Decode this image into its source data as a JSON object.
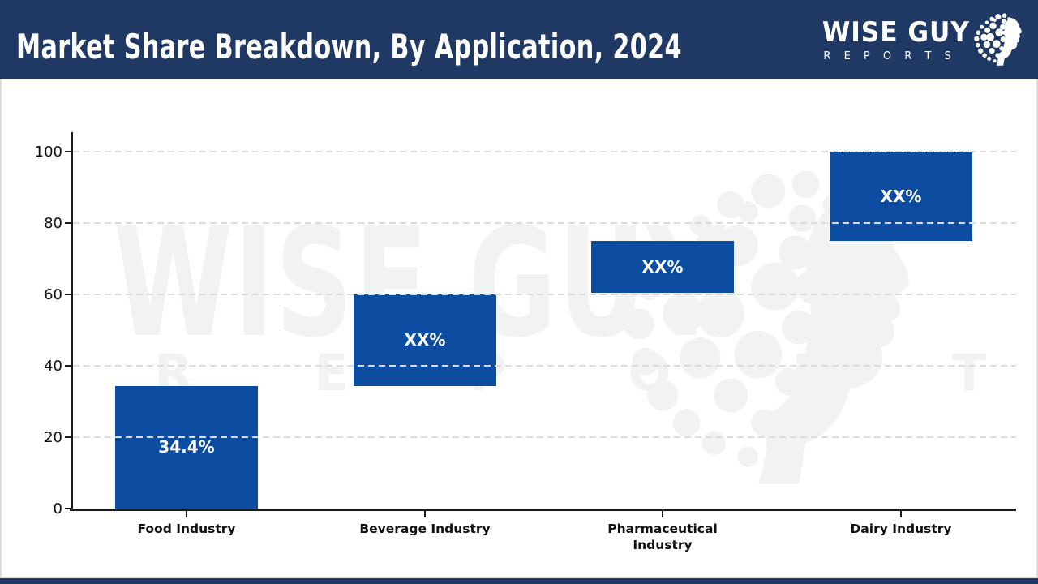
{
  "header": {
    "title": "Market Share Breakdown, By Application, 2024",
    "logo_line1": "WISE GUY",
    "logo_line2": "R E P O R T S",
    "bg_color": "#1F3864"
  },
  "watermark": {
    "line1": "WISE GUY",
    "line2": "R E P O R T S"
  },
  "chart_data": {
    "type": "bar",
    "subtype": "floating-waterfall",
    "title": "Market Share Breakdown, By Application, 2024",
    "categories": [
      "Food Industry",
      "Beverage Industry",
      "Pharmaceutical Industry",
      "Dairy Industry"
    ],
    "bars": [
      {
        "category": "Food Industry",
        "base": 0,
        "top": 34.4,
        "label": "34.4%"
      },
      {
        "category": "Beverage Industry",
        "base": 34.4,
        "top": 60,
        "label": "XX%"
      },
      {
        "category": "Pharmaceutical Industry",
        "base": 60.5,
        "top": 75,
        "label": "XX%"
      },
      {
        "category": "Dairy Industry",
        "base": 75,
        "top": 100,
        "label": "XX%"
      }
    ],
    "unit": "%",
    "yticks": [
      0,
      20,
      40,
      60,
      80,
      100
    ],
    "ylim": [
      0,
      100
    ],
    "xlabel": "",
    "ylabel": "",
    "grid": "horizontal-dashed",
    "legend": "none",
    "bar_color": "#0C4DA2",
    "bar_label_color": "#FFFFFF",
    "grid_color": "#DBDBDB",
    "axis_color": "#1A1A1A"
  }
}
